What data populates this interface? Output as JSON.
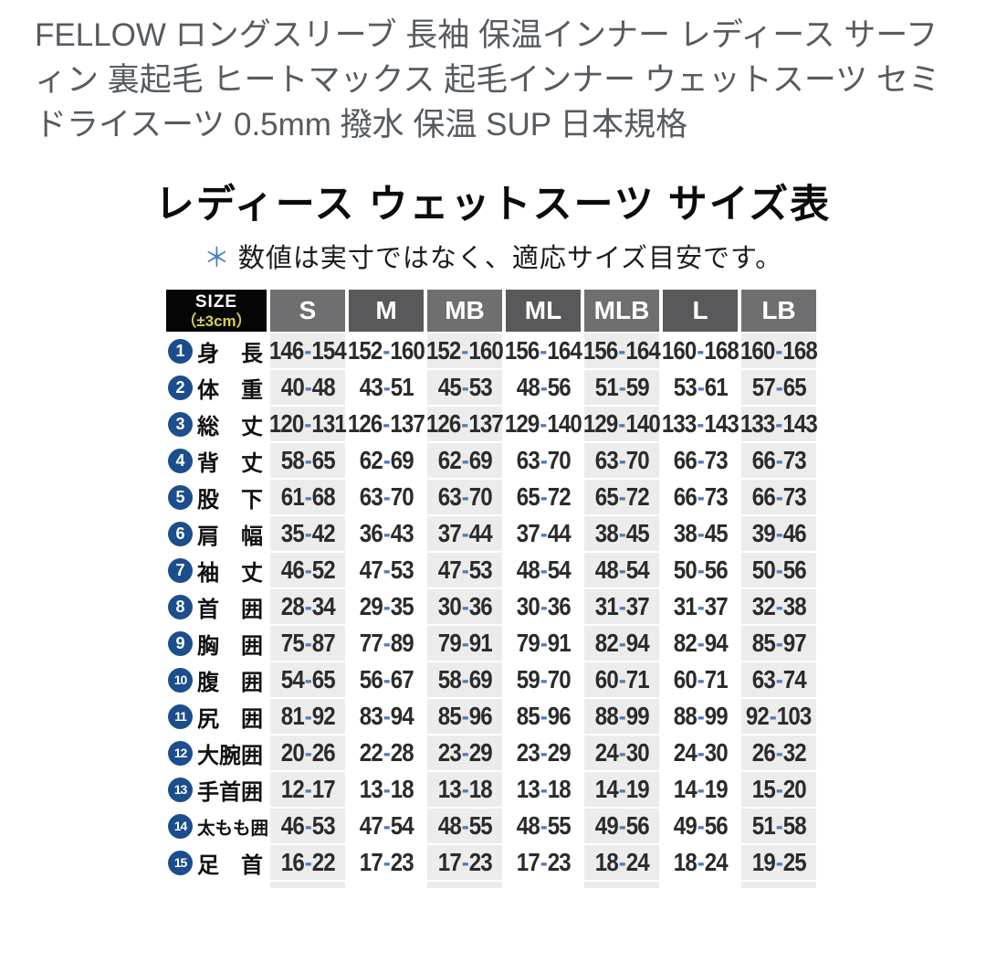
{
  "product_title": "FELLOW ロングスリーブ 長袖 保温インナー レディース サーフィン 裏起毛 ヒートマックス 起毛インナー ウェットスーツ セミドライスーツ 0.5mm 撥水 保温 SUP 日本規格",
  "size_chart": {
    "title": "レディース ウェットスーツ サイズ表",
    "note_marker": "＊",
    "note": "数値は実寸ではなく、適応サイズ目安です。",
    "corner_header": {
      "line1": "SIZE",
      "line2": "（±3cm）"
    },
    "columns": [
      "S",
      "M",
      "MB",
      "ML",
      "MLB",
      "L",
      "LB"
    ],
    "rows": [
      {
        "num": "1",
        "label": "身　長",
        "values": [
          "146-154",
          "152-160",
          "152-160",
          "156-164",
          "156-164",
          "160-168",
          "160-168"
        ]
      },
      {
        "num": "2",
        "label": "体　重",
        "values": [
          "40-48",
          "43-51",
          "45-53",
          "48-56",
          "51-59",
          "53-61",
          "57-65"
        ]
      },
      {
        "num": "3",
        "label": "総　丈",
        "values": [
          "120-131",
          "126-137",
          "126-137",
          "129-140",
          "129-140",
          "133-143",
          "133-143"
        ]
      },
      {
        "num": "4",
        "label": "背　丈",
        "values": [
          "58-65",
          "62-69",
          "62-69",
          "63-70",
          "63-70",
          "66-73",
          "66-73"
        ]
      },
      {
        "num": "5",
        "label": "股　下",
        "values": [
          "61-68",
          "63-70",
          "63-70",
          "65-72",
          "65-72",
          "66-73",
          "66-73"
        ]
      },
      {
        "num": "6",
        "label": "肩　幅",
        "values": [
          "35-42",
          "36-43",
          "37-44",
          "37-44",
          "38-45",
          "38-45",
          "39-46"
        ]
      },
      {
        "num": "7",
        "label": "袖　丈",
        "values": [
          "46-52",
          "47-53",
          "47-53",
          "48-54",
          "48-54",
          "50-56",
          "50-56"
        ]
      },
      {
        "num": "8",
        "label": "首　囲",
        "values": [
          "28-34",
          "29-35",
          "30-36",
          "30-36",
          "31-37",
          "31-37",
          "32-38"
        ]
      },
      {
        "num": "9",
        "label": "胸　囲",
        "values": [
          "75-87",
          "77-89",
          "79-91",
          "79-91",
          "82-94",
          "82-94",
          "85-97"
        ]
      },
      {
        "num": "10",
        "label": "腹　囲",
        "values": [
          "54-65",
          "56-67",
          "58-69",
          "59-70",
          "60-71",
          "60-71",
          "63-74"
        ]
      },
      {
        "num": "11",
        "label": "尻　囲",
        "values": [
          "81-92",
          "83-94",
          "85-96",
          "85-96",
          "88-99",
          "88-99",
          "92-103"
        ]
      },
      {
        "num": "12",
        "label": "大腕囲",
        "values": [
          "20-26",
          "22-28",
          "23-29",
          "23-29",
          "24-30",
          "24-30",
          "26-32"
        ]
      },
      {
        "num": "13",
        "label": "手首囲",
        "values": [
          "12-17",
          "13-18",
          "13-18",
          "13-18",
          "14-19",
          "14-19",
          "15-20"
        ]
      },
      {
        "num": "14",
        "label": "太もも囲",
        "values": [
          "46-53",
          "47-54",
          "48-55",
          "48-55",
          "49-56",
          "49-56",
          "51-58"
        ]
      },
      {
        "num": "15",
        "label": "足　首",
        "values": [
          "16-22",
          "17-23",
          "17-23",
          "17-23",
          "18-24",
          "18-24",
          "19-25"
        ]
      }
    ]
  },
  "colors": {
    "title_text": "#565b60",
    "accent_blue_dash": "#4a7dbf",
    "note_asterisk": "#4a7dbf",
    "circle_blue": "#1c4d8c",
    "corner_bg": "#050505",
    "corner_accent_yellow": "#d8ce52",
    "header_light": "#6f6f71",
    "header_dark": "#59595b",
    "column_shade": "#ececec"
  }
}
